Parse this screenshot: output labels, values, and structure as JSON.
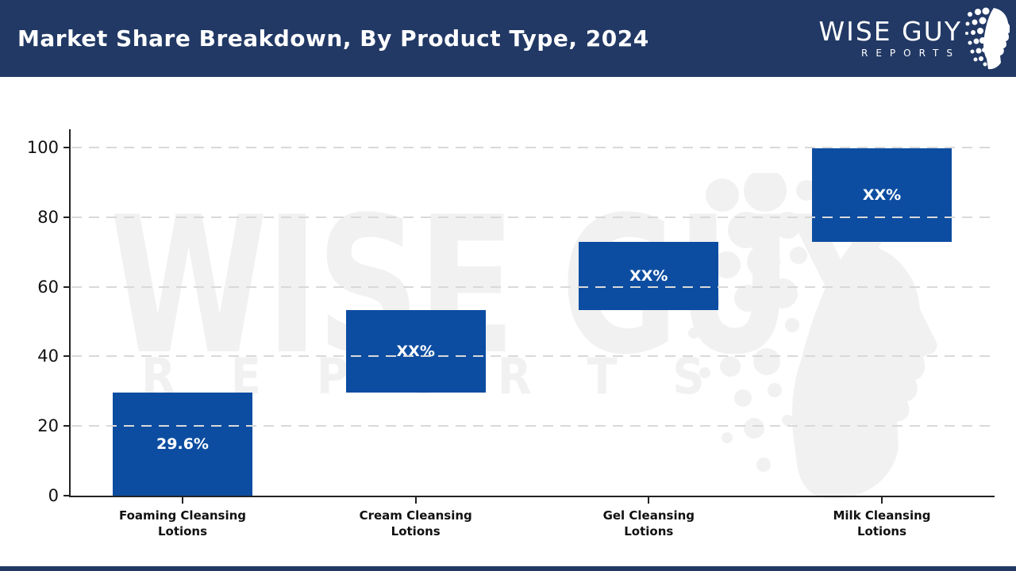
{
  "header": {
    "title": "Market Share Breakdown, By Product Type, 2024",
    "bg_color": "#223965",
    "logo": {
      "name_line": "WISE GUY",
      "sub_line": "REPORTS"
    }
  },
  "watermark": {
    "big_text": "WISE GUY",
    "sub_text": "R E P O R T S"
  },
  "chart_data": {
    "type": "bar",
    "subtype": "floating-segment-waterfall",
    "title": "Market Share Breakdown, By Product Type, 2024",
    "categories": [
      "Foaming Cleansing Lotions",
      "Cream Cleansing Lotions",
      "Gel Cleansing Lotions",
      "Milk Cleansing Lotions"
    ],
    "bars": [
      {
        "label_line1": "Foaming Cleansing",
        "label_line2": "Lotions",
        "base": 0,
        "top": 29.6,
        "value_label": "29.6%"
      },
      {
        "label_line1": "Cream Cleansing",
        "label_line2": "Lotions",
        "base": 29.6,
        "top": 53.2,
        "value_label": "XX%"
      },
      {
        "label_line1": "Gel Cleansing",
        "label_line2": "Lotions",
        "base": 53.2,
        "top": 72.9,
        "value_label": "XX%"
      },
      {
        "label_line1": "Milk Cleansing",
        "label_line2": "Lotions",
        "base": 72.9,
        "top": 99.8,
        "value_label": "XX%"
      }
    ],
    "yticks": [
      0,
      20,
      40,
      60,
      80,
      100
    ],
    "ylim": [
      0,
      105
    ],
    "xlabel": "",
    "ylabel": "",
    "bar_color": "#0d4da1",
    "grid": "horizontal dashed",
    "legend": "none"
  }
}
